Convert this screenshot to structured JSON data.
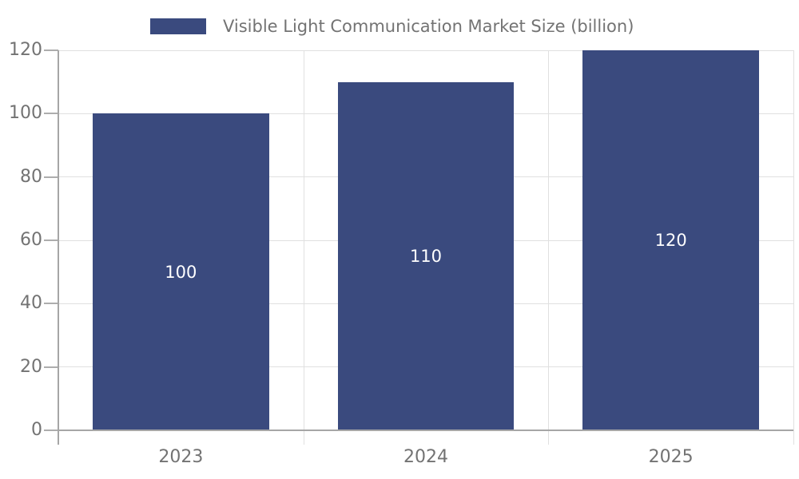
{
  "legend": {
    "label": "Visible Light Communication Market Size (billion)"
  },
  "chart_data": {
    "type": "bar",
    "title": "Visible Light Communication Market Size (billion)",
    "categories": [
      "2023",
      "2024",
      "2025"
    ],
    "values": [
      100,
      110,
      120
    ],
    "bar_labels": [
      "100",
      "110",
      "120"
    ],
    "xlabel": "",
    "ylabel": "",
    "ylim": [
      0,
      120
    ],
    "yticks": [
      0,
      20,
      40,
      60,
      80,
      100,
      120
    ],
    "grid": true,
    "legend_position": "top-center",
    "bar_label_position": "center-inside"
  },
  "colors": {
    "bar": "#3A4A7E",
    "bar_label": "#FFFFFF",
    "gridline": "#E0E0E0",
    "axis_line": "#A6A6A6",
    "tick_mark": "#ADADAD",
    "tick_label": "#737373",
    "background": "#FFFFFF"
  }
}
